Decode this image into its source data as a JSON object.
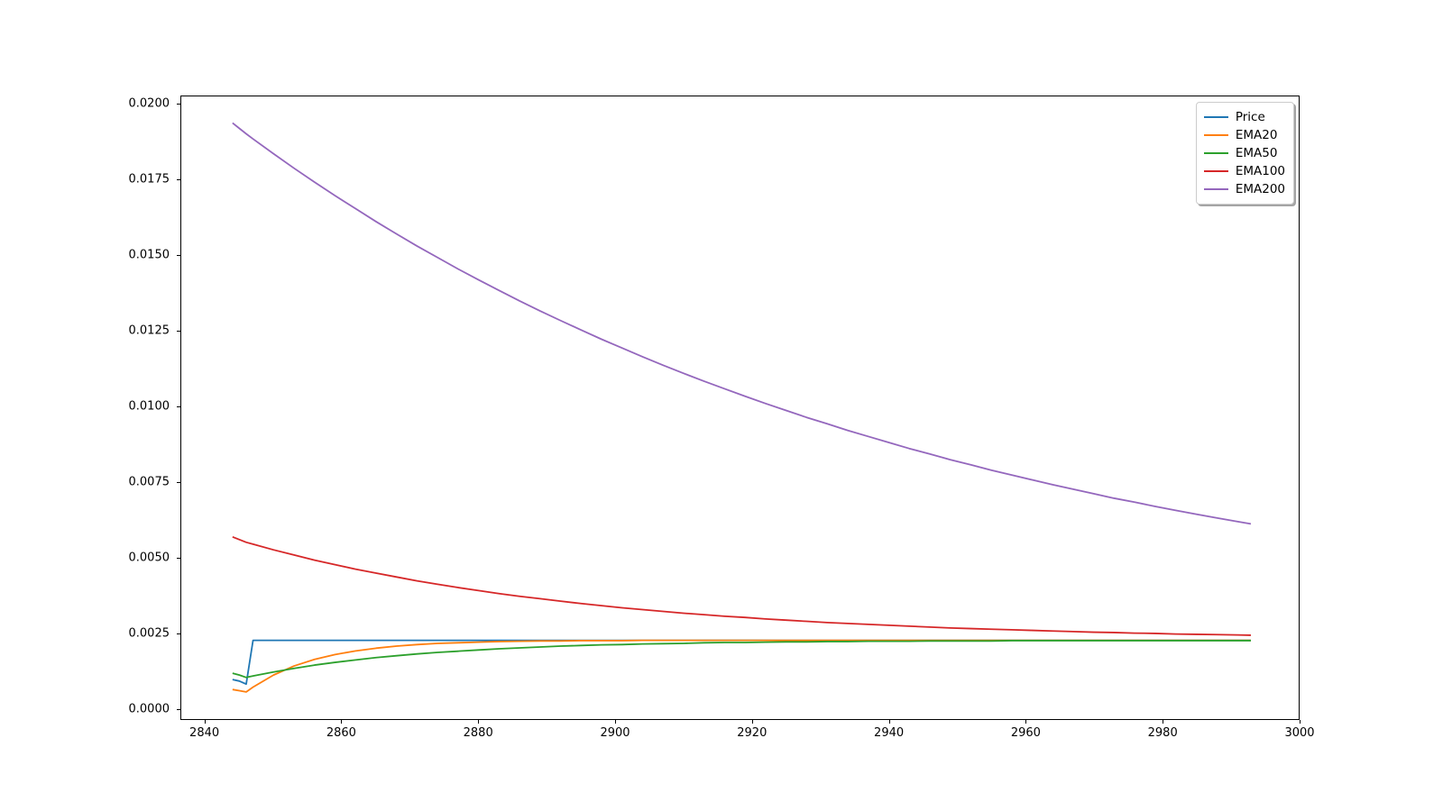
{
  "figure": {
    "background_color": "#ffffff",
    "spine_color": "#000000",
    "tick_color": "#000000"
  },
  "chart_data": {
    "type": "line",
    "title": "",
    "xlabel": "",
    "ylabel": "",
    "grid": false,
    "legend_position": "upper right",
    "xlim": [
      2836.5,
      3000
    ],
    "ylim": [
      -0.00036,
      0.02028
    ],
    "x_ticks": [
      2840,
      2860,
      2880,
      2900,
      2920,
      2940,
      2960,
      2980,
      3000
    ],
    "x_tick_labels": [
      "2840",
      "2860",
      "2880",
      "2900",
      "2920",
      "2940",
      "2960",
      "2980",
      "3000"
    ],
    "y_ticks": [
      0.0,
      0.0025,
      0.005,
      0.0075,
      0.01,
      0.0125,
      0.015,
      0.0175,
      0.02
    ],
    "y_tick_labels": [
      "0.0000",
      "0.0025",
      "0.0050",
      "0.0075",
      "0.0100",
      "0.0125",
      "0.0150",
      "0.0175",
      "0.0200"
    ],
    "x": [
      2844,
      2845,
      2846,
      2847,
      2850,
      2853,
      2856,
      2859,
      2862,
      2865,
      2868,
      2871,
      2874,
      2877,
      2880,
      2883,
      2886,
      2889,
      2892,
      2895,
      2898,
      2901,
      2904,
      2907,
      2910,
      2913,
      2916,
      2919,
      2922,
      2925,
      2928,
      2931,
      2934,
      2937,
      2940,
      2943,
      2946,
      2949,
      2952,
      2955,
      2958,
      2961,
      2964,
      2967,
      2970,
      2973,
      2976,
      2979,
      2982,
      2985,
      2988,
      2991,
      2993
    ],
    "series": [
      {
        "name": "Price",
        "color": "#1f77b4",
        "values": [
          0.00095,
          0.0009,
          0.0008,
          0.00225,
          0.00225,
          0.00225,
          0.00225,
          0.00225,
          0.00225,
          0.00225,
          0.00225,
          0.00225,
          0.00225,
          0.00225,
          0.00225,
          0.00225,
          0.00225,
          0.00225,
          0.00225,
          0.00225,
          0.00225,
          0.00225,
          0.00225,
          0.00225,
          0.00225,
          0.00225,
          0.00225,
          0.00225,
          0.00225,
          0.00225,
          0.00225,
          0.00225,
          0.00225,
          0.00225,
          0.00225,
          0.00225,
          0.00225,
          0.00225,
          0.00225,
          0.00225,
          0.00225,
          0.00225,
          0.00225,
          0.00225,
          0.00225,
          0.00225,
          0.00225,
          0.00225,
          0.00225,
          0.00225,
          0.00225,
          0.00225,
          0.00225
        ]
      },
      {
        "name": "EMA20",
        "color": "#ff7f0e",
        "values": [
          0.00062,
          0.00058,
          0.00054,
          0.0007,
          0.0011,
          0.0014,
          0.00162,
          0.00178,
          0.0019,
          0.00199,
          0.00206,
          0.00211,
          0.00215,
          0.00217,
          0.00219,
          0.00221,
          0.00222,
          0.00223,
          0.00223,
          0.00224,
          0.00224,
          0.00224,
          0.00225,
          0.00225,
          0.00225,
          0.00225,
          0.00225,
          0.00225,
          0.00225,
          0.00225,
          0.00225,
          0.00225,
          0.00225,
          0.00225,
          0.00225,
          0.00225,
          0.00225,
          0.00225,
          0.00225,
          0.00225,
          0.00225,
          0.00225,
          0.00225,
          0.00225,
          0.00225,
          0.00225,
          0.00225,
          0.00225,
          0.00225,
          0.00225,
          0.00225,
          0.00225,
          0.00225
        ]
      },
      {
        "name": "EMA50",
        "color": "#2ca02c",
        "values": [
          0.00116,
          0.0011,
          0.00102,
          0.00107,
          0.0012,
          0.00132,
          0.00143,
          0.00152,
          0.0016,
          0.00168,
          0.00174,
          0.0018,
          0.00185,
          0.00189,
          0.00193,
          0.00197,
          0.002,
          0.00203,
          0.00206,
          0.00208,
          0.0021,
          0.00211,
          0.00213,
          0.00214,
          0.00215,
          0.00217,
          0.00218,
          0.00218,
          0.00219,
          0.0022,
          0.0022,
          0.00221,
          0.00221,
          0.00222,
          0.00222,
          0.00222,
          0.00223,
          0.00223,
          0.00223,
          0.00223,
          0.00224,
          0.00224,
          0.00224,
          0.00224,
          0.00224,
          0.00224,
          0.00224,
          0.00224,
          0.00224,
          0.00224,
          0.00224,
          0.00224,
          0.00224
        ]
      },
      {
        "name": "EMA100",
        "color": "#d62728",
        "values": [
          0.00568,
          0.00559,
          0.0055,
          0.00544,
          0.00525,
          0.00508,
          0.00491,
          0.00476,
          0.00461,
          0.00448,
          0.00435,
          0.00422,
          0.00411,
          0.004,
          0.0039,
          0.0038,
          0.00371,
          0.00363,
          0.00355,
          0.00347,
          0.0034,
          0.00333,
          0.00327,
          0.00321,
          0.00315,
          0.0031,
          0.00305,
          0.00301,
          0.00296,
          0.00292,
          0.00288,
          0.00284,
          0.00281,
          0.00278,
          0.00275,
          0.00272,
          0.00269,
          0.00266,
          0.00264,
          0.00262,
          0.0026,
          0.00258,
          0.00256,
          0.00254,
          0.00252,
          0.00251,
          0.00249,
          0.00248,
          0.00246,
          0.00245,
          0.00244,
          0.00243,
          0.00242
        ]
      },
      {
        "name": "EMA200",
        "color": "#9467bd",
        "values": [
          0.0194,
          0.01922,
          0.01904,
          0.01887,
          0.01838,
          0.0179,
          0.01744,
          0.01699,
          0.01656,
          0.01613,
          0.01572,
          0.01532,
          0.01494,
          0.01456,
          0.0142,
          0.01385,
          0.0135,
          0.01317,
          0.01285,
          0.01254,
          0.01223,
          0.01194,
          0.01165,
          0.01137,
          0.0111,
          0.01084,
          0.01059,
          0.01034,
          0.0101,
          0.00987,
          0.00964,
          0.00943,
          0.00921,
          0.00901,
          0.00881,
          0.00861,
          0.00843,
          0.00824,
          0.00807,
          0.00789,
          0.00773,
          0.00757,
          0.00741,
          0.00726,
          0.00711,
          0.00696,
          0.00683,
          0.00669,
          0.00656,
          0.00643,
          0.00631,
          0.00619,
          0.00611
        ]
      }
    ]
  }
}
